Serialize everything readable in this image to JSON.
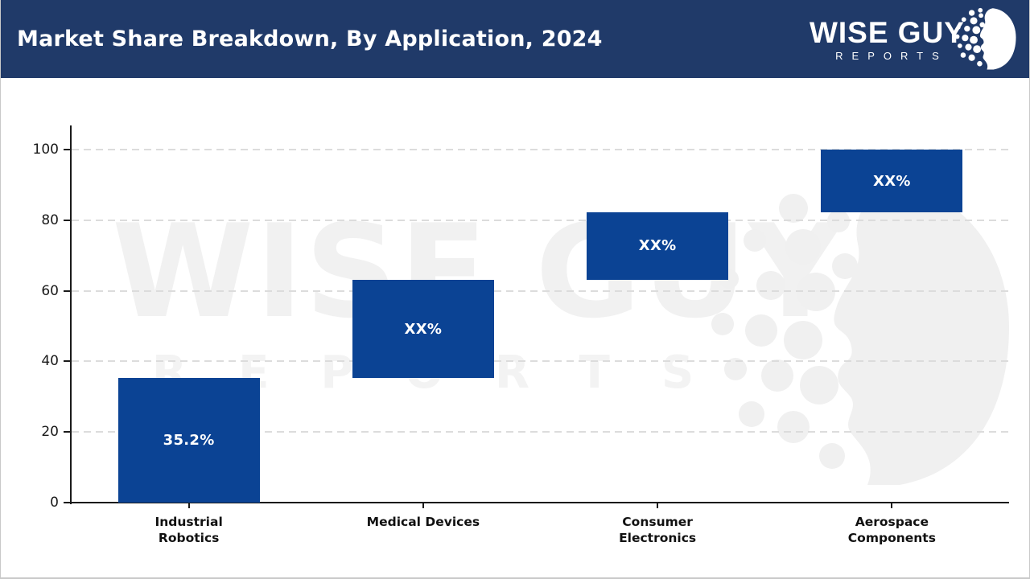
{
  "header": {
    "title": "Market Share Breakdown, By Application, 2024",
    "bg_color": "#203a69",
    "logo": {
      "primary": "WISE GUY",
      "secondary": "REPORTS"
    }
  },
  "watermark": {
    "primary": "WISE GUY",
    "secondary": "REPORTS"
  },
  "chart_data": {
    "type": "bar",
    "variant": "floating-waterfall",
    "title": "Market Share Breakdown, By Application, 2024",
    "categories": [
      "Industrial\nRobotics",
      "Medical Devices",
      "Consumer\nElectronics",
      "Aerospace\nComponents"
    ],
    "series": [
      {
        "name": "Market share (%)",
        "segments": [
          {
            "start": 0,
            "end": 35.2,
            "label": "35.2%"
          },
          {
            "start": 35.2,
            "end": 63.2,
            "label": "XX%"
          },
          {
            "start": 63.2,
            "end": 82.2,
            "label": "XX%"
          },
          {
            "start": 82.2,
            "end": 100,
            "label": "XX%"
          }
        ]
      }
    ],
    "ylim": [
      0,
      100
    ],
    "yticks": [
      0,
      20,
      40,
      60,
      80,
      100
    ],
    "xlabel": "",
    "ylabel": "",
    "grid": {
      "horizontal": true,
      "style": "dashed"
    },
    "legend": "none",
    "colors": {
      "bar": "#0b4394",
      "bar_label": "#ffffff",
      "axis": "#1a1a1a",
      "grid": "#dcdcdc",
      "header_bg": "#203a69",
      "watermark": "#f1f1f1"
    }
  }
}
